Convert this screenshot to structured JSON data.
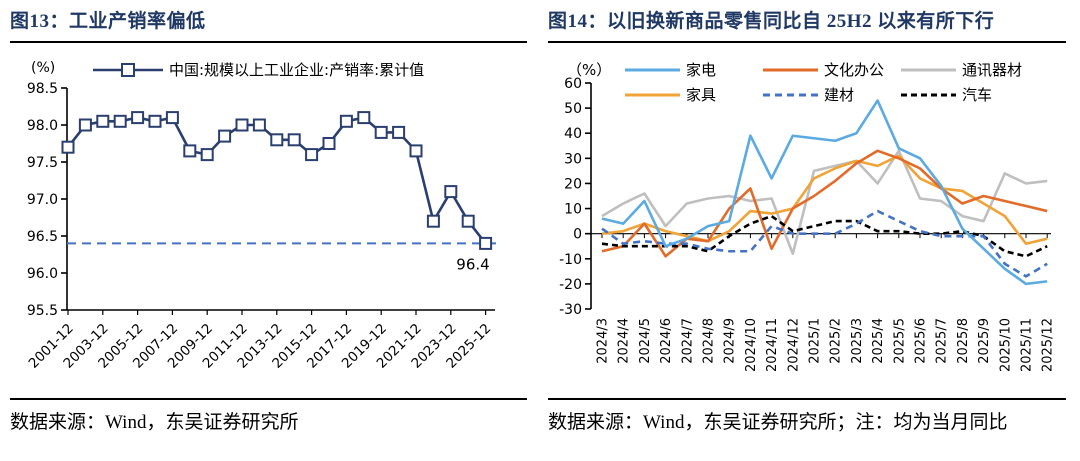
{
  "left_panel": {
    "title": "图13：工业产销率偏低",
    "source": "数据来源：Wind，东吴证券研究所"
  },
  "right_panel": {
    "title": "图14：以旧换新商品零售同比自 25H2 以来有所下行",
    "source": "数据来源：Wind，东吴证券研究所；注：均为当月同比"
  },
  "colors": {
    "title_navy": "#1F3864",
    "axis_black": "#000000",
    "ref_line_blue": "#4472C4",
    "industrial_line_navy": "#2A3F6F"
  },
  "chart_data": [
    {
      "type": "line",
      "legend": "中国:规模以上工业企业:产销率:累计值",
      "unit": "(%)",
      "line_color": "#2A3F6F",
      "marker": "hollow-square",
      "ylim": [
        95.5,
        98.5
      ],
      "ystep": 0.5,
      "grid": false,
      "legend_position": "top",
      "xlabel_every": 2,
      "categories": [
        "2001-12",
        "2002-12",
        "2003-12",
        "2004-12",
        "2005-12",
        "2006-12",
        "2007-12",
        "2008-12",
        "2009-12",
        "2010-12",
        "2011-12",
        "2012-12",
        "2013-12",
        "2014-12",
        "2015-12",
        "2016-12",
        "2017-12",
        "2018-12",
        "2019-12",
        "2020-12",
        "2021-12",
        "2022-12",
        "2023-12",
        "2024-12",
        "2025-12"
      ],
      "values": [
        97.7,
        98.0,
        98.05,
        98.05,
        98.1,
        98.05,
        98.1,
        97.65,
        97.6,
        97.85,
        98.0,
        98.0,
        97.8,
        97.8,
        97.6,
        97.75,
        98.05,
        98.1,
        97.9,
        97.9,
        97.65,
        96.7,
        97.1,
        96.7,
        96.4
      ],
      "ref_line": {
        "value": 96.4,
        "label": "96.4",
        "color": "#4472C4",
        "style": "dashed"
      }
    },
    {
      "type": "line",
      "unit": "（%）",
      "ylim": [
        -30,
        60
      ],
      "ystep": 10,
      "grid": false,
      "legend_position": "top",
      "categories": [
        "2024/3",
        "2024/4",
        "2024/5",
        "2024/6",
        "2024/7",
        "2024/8",
        "2024/9",
        "2024/10",
        "2024/11",
        "2024/12",
        "2025/1",
        "2025/2",
        "2025/3",
        "2025/4",
        "2025/5",
        "2025/6",
        "2025/7",
        "2025/8",
        "2025/9",
        "2025/10",
        "2025/11",
        "2025/12"
      ],
      "legend_rows": [
        [
          "家电",
          "文化办公",
          "通讯器材"
        ],
        [
          "家具",
          "建材",
          "汽车"
        ]
      ],
      "series": [
        {
          "name": "家电",
          "color": "#5BAAE2",
          "dash": null,
          "values": [
            6,
            4,
            13,
            -5,
            -2,
            3,
            5,
            39,
            22,
            39,
            38,
            37,
            40,
            53,
            34,
            30,
            19,
            2,
            -6,
            -14,
            -20,
            -19
          ]
        },
        {
          "name": "家具",
          "color": "#F0A336",
          "dash": null,
          "values": [
            0,
            1,
            4,
            1,
            -1,
            -3,
            1,
            9,
            8,
            10,
            22,
            26,
            29,
            27,
            31,
            22,
            18,
            17,
            12,
            7,
            -4,
            -2
          ]
        },
        {
          "name": "文化办公",
          "color": "#E26B29",
          "dash": null,
          "values": [
            -7,
            -5,
            4,
            -9,
            -2,
            -3,
            10,
            18,
            -6,
            10,
            15,
            21,
            28,
            33,
            30,
            26,
            18,
            12,
            15,
            13,
            11,
            9
          ]
        },
        {
          "name": "建材",
          "color": "#4472C4",
          "dash": "7 5",
          "values": [
            2,
            -4,
            -3,
            -4,
            -4,
            -6,
            -7,
            -7,
            3,
            0,
            0,
            0,
            4,
            9,
            5,
            1,
            -1,
            -1,
            -1,
            -12,
            -17,
            -12
          ]
        },
        {
          "name": "通讯器材",
          "color": "#BFBFBF",
          "dash": null,
          "values": [
            7,
            12,
            16,
            3,
            12,
            14,
            15,
            13,
            14,
            -8,
            25,
            27,
            29,
            20,
            33,
            14,
            13,
            7,
            5,
            24,
            20,
            21
          ]
        },
        {
          "name": "汽车",
          "color": "#000000",
          "dash": "6 4",
          "values": [
            -4,
            -5,
            -5,
            -5,
            -5,
            -7,
            -1,
            4,
            7,
            1,
            3,
            5,
            5,
            1,
            1,
            0,
            0,
            1,
            -1,
            -7,
            -9,
            -5
          ]
        }
      ]
    }
  ]
}
